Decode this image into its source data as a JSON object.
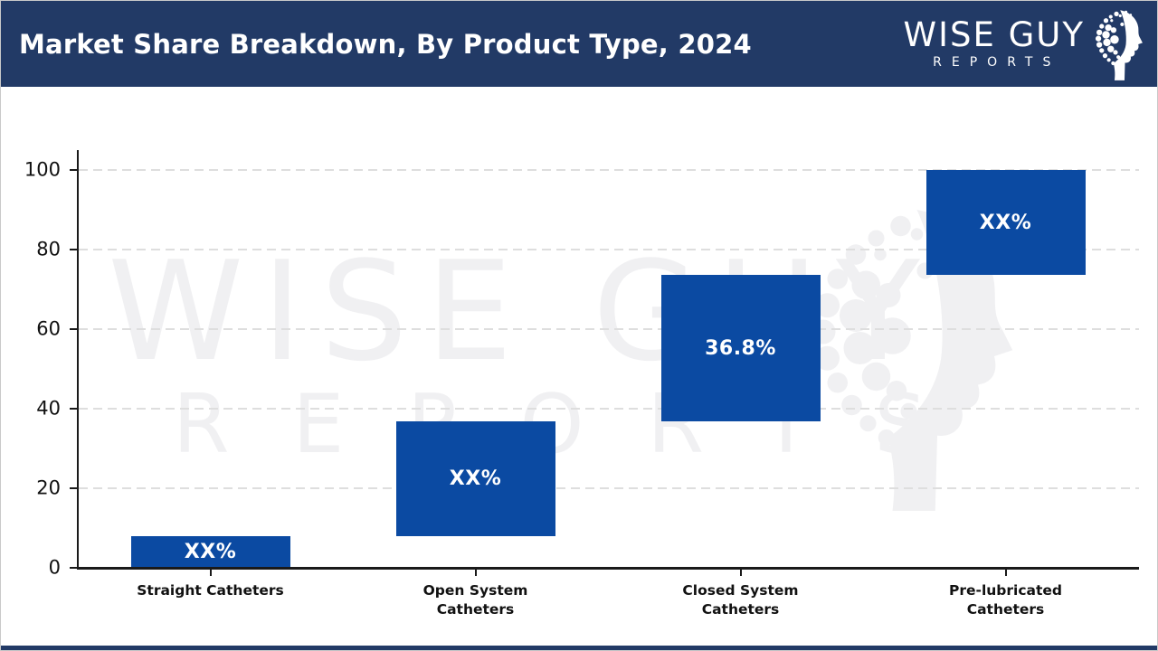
{
  "header": {
    "title": "Market Share Breakdown, By Product Type, 2024",
    "logo": {
      "wordmark": "WISE GUY",
      "subtext": "REPORTS"
    }
  },
  "watermark": {
    "wordmark": "WISE GUY",
    "subtext": "REPORTS"
  },
  "colors": {
    "header_bg": "#223A66",
    "footer_bg": "#223A66",
    "title_text": "#FFFFFF",
    "bar_fill": "#0B4AA2",
    "bar_label": "#FFFFFF",
    "axis": "#1A1A1A",
    "gridline": "#DEDEDE",
    "watermark": "#F0F0F2"
  },
  "chart_data": {
    "type": "bar",
    "subtype": "waterfall",
    "title": "Market Share Breakdown, By Product Type, 2024",
    "xlabel": "",
    "ylabel": "",
    "ylim": [
      0,
      100
    ],
    "y_ticks": [
      0,
      20,
      40,
      60,
      80,
      100
    ],
    "grid": "horizontal-dashed",
    "legend": "none",
    "bar_color": "#0B4AA2",
    "categories": [
      "Straight Catheters",
      "Open System Catheters",
      "Closed System Catheters",
      "Pre-lubricated Catheters"
    ],
    "category_lines": [
      [
        "Straight Catheters"
      ],
      [
        "Open System",
        "Catheters"
      ],
      [
        "Closed System",
        "Catheters"
      ],
      [
        "Pre-lubricated",
        "Catheters"
      ]
    ],
    "segments": [
      {
        "category": "Straight Catheters",
        "start": 0,
        "end": 8,
        "value": 8,
        "value_label": "XX%"
      },
      {
        "category": "Open System Catheters",
        "start": 8,
        "end": 36.8,
        "value": 28.8,
        "value_label": "XX%"
      },
      {
        "category": "Closed System Catheters",
        "start": 36.8,
        "end": 73.6,
        "value": 36.8,
        "value_label": "36.8%"
      },
      {
        "category": "Pre-lubricated Catheters",
        "start": 73.6,
        "end": 100,
        "value": 26.4,
        "value_label": "XX%"
      }
    ]
  }
}
